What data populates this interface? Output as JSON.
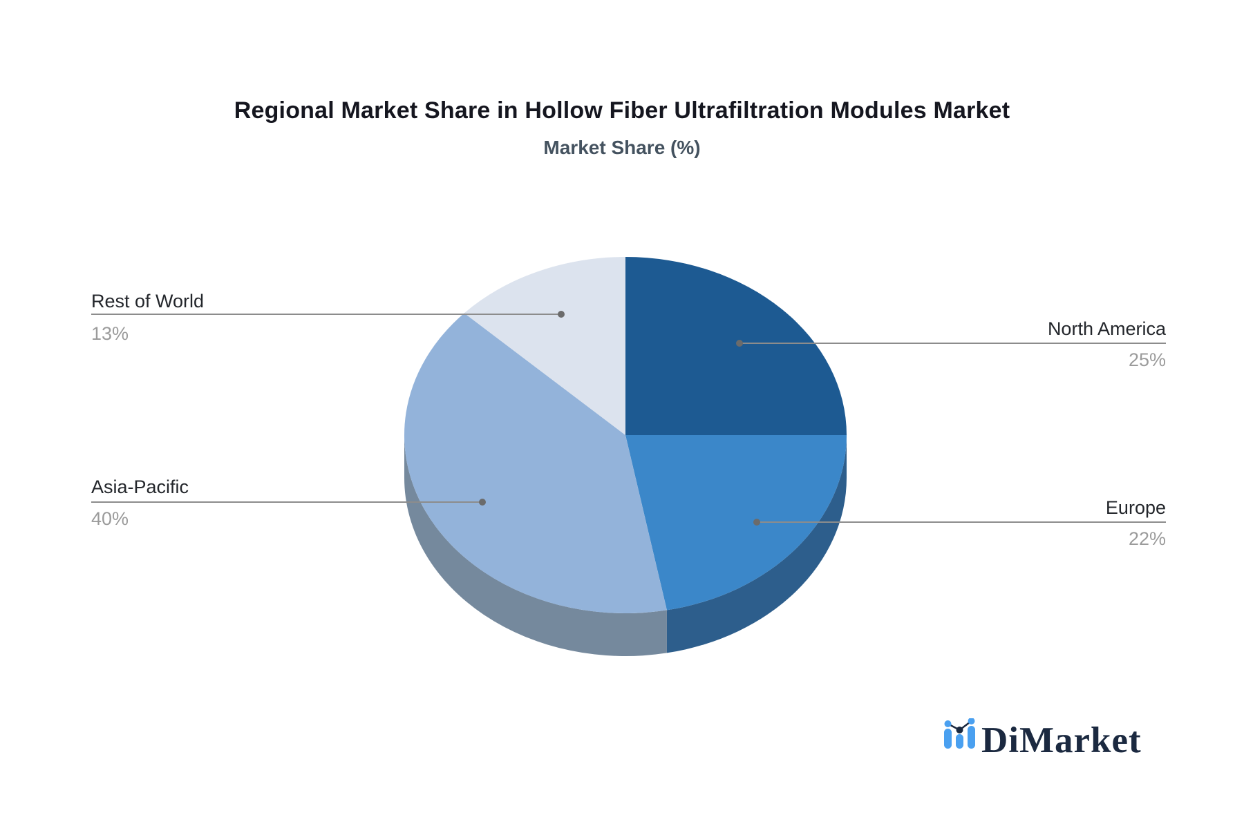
{
  "title": "Regional Market Share in Hollow Fiber Ultrafiltration Modules Market",
  "subtitle": "Market Share (%)",
  "chart_data": {
    "type": "pie",
    "title": "Regional Market Share in Hollow Fiber Ultrafiltration Modules Market",
    "subtitle": "Market Share (%)",
    "categories": [
      "North America",
      "Europe",
      "Asia-Pacific",
      "Rest of World"
    ],
    "values": [
      25,
      22,
      40,
      13
    ],
    "unit": "%",
    "effect": "3d-depth",
    "start_angle": "top",
    "direction": "clockwise",
    "colors": [
      "#1d5a92",
      "#3b87c9",
      "#93b3da",
      "#dce3ee"
    ],
    "depth_colors": [
      "#16456f",
      "#2d5e8c",
      "#75899d",
      "#aebcce"
    ],
    "leader_line_color": "#8c8c8c",
    "callouts": [
      {
        "name": "North America",
        "pct": "25%",
        "side": "right"
      },
      {
        "name": "Europe",
        "pct": "22%",
        "side": "right"
      },
      {
        "name": "Asia-Pacific",
        "pct": "40%",
        "side": "left"
      },
      {
        "name": "Rest of World",
        "pct": "13%",
        "side": "left"
      }
    ]
  },
  "logo": {
    "text": "DiMarket",
    "icon": "bar-line-chart-icon",
    "icon_blue": "#4aa0f0",
    "navy": "#1b2940"
  }
}
